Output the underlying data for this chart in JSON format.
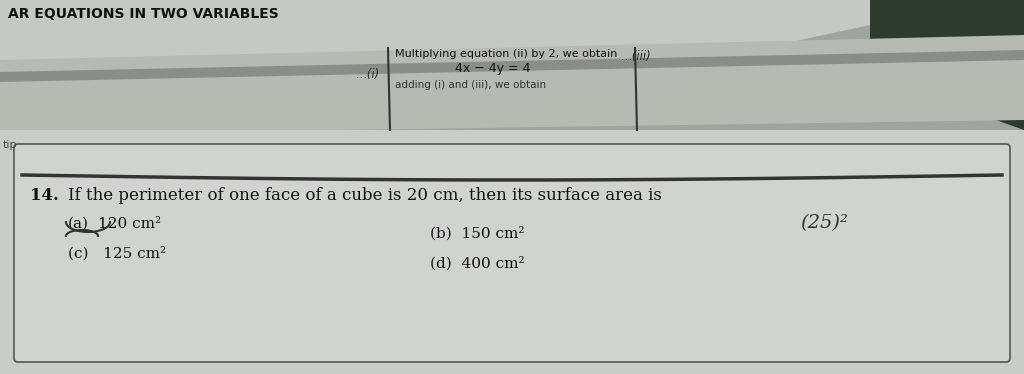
{
  "bg_color": "#9a9e9a",
  "main_page_color": "#c8ccc8",
  "overlay_strip_color": "#b8bdb5",
  "white_page_color": "#d8dcd5",
  "question_box_color": "#cdd1cb",
  "header_text": "AR EQUATIONS IN TWO VARIABLES",
  "header_fontsize": 10,
  "header_color": "#111111",
  "overlay_text1": "Multiplying equation (ii) by 2, we obtain",
  "overlay_text2": "4x − 4y = 4",
  "overlay_text3": "…(iii)",
  "overlay_text4": "…(i)",
  "overlay_text5": "adding (i) and (iii), we obtain",
  "question_num": "14.",
  "question_text": "If the perimeter of one face of a cube is 20 cm, then its surface area is",
  "option_a_pre": "(a)",
  "option_a_val": "120 cm²",
  "option_b": "(b)  150 cm²",
  "option_c": "(c)   125 cm²",
  "option_d": "(d)  400 cm²",
  "side_annotation": "(25)²",
  "text_color": "#111111",
  "question_fontsize": 12,
  "option_fontsize": 11,
  "tip_text": "tip"
}
